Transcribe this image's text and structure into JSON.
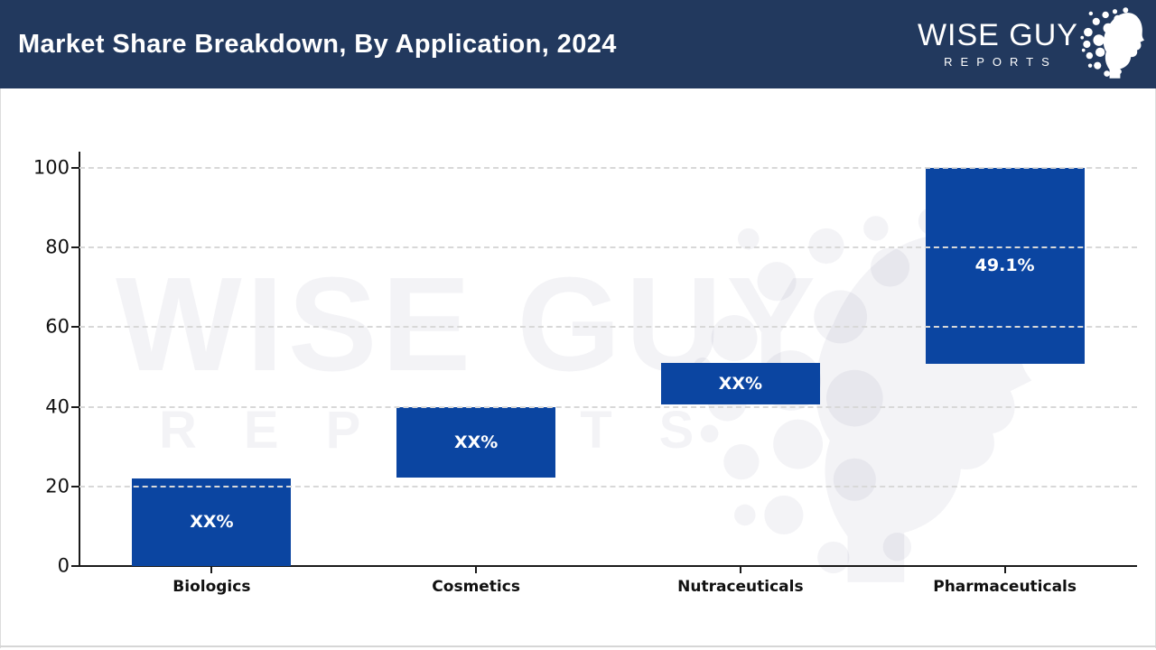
{
  "header": {
    "title": "Market Share Breakdown, By Application, 2024",
    "bg_color": "#22395e",
    "logo": {
      "wordmark": "WISE GUY",
      "subtitle": "REPORTS"
    }
  },
  "watermark": {
    "wordmark": "WISE GUY",
    "subtitle": "REPORTS"
  },
  "chart_data": {
    "type": "bar",
    "subtype": "waterfall-floating-bars",
    "title": "Market Share Breakdown, By Application, 2024",
    "categories": [
      "Biologics",
      "Cosmetics",
      "Nutraceuticals",
      "Pharmaceuticals"
    ],
    "segments": [
      {
        "category": "Biologics",
        "start": 0,
        "end": 22,
        "label": "XX%"
      },
      {
        "category": "Cosmetics",
        "start": 22.2,
        "end": 39.8,
        "label": "XX%"
      },
      {
        "category": "Nutraceuticals",
        "start": 40.7,
        "end": 51.1,
        "label": "XX%"
      },
      {
        "category": "Pharmaceuticals",
        "start": 50.9,
        "end": 100,
        "label": "49.1%"
      }
    ],
    "xlabel": "",
    "ylabel": "",
    "y_ticks": [
      0,
      20,
      40,
      60,
      80,
      100
    ],
    "ylim": [
      0,
      105
    ],
    "grid": "horizontal-dashed-above-bars",
    "legend": "none",
    "bar_color": "#0b45a1",
    "bar_label_color": "#ffffff",
    "axis_color": "#1a1a1a"
  }
}
